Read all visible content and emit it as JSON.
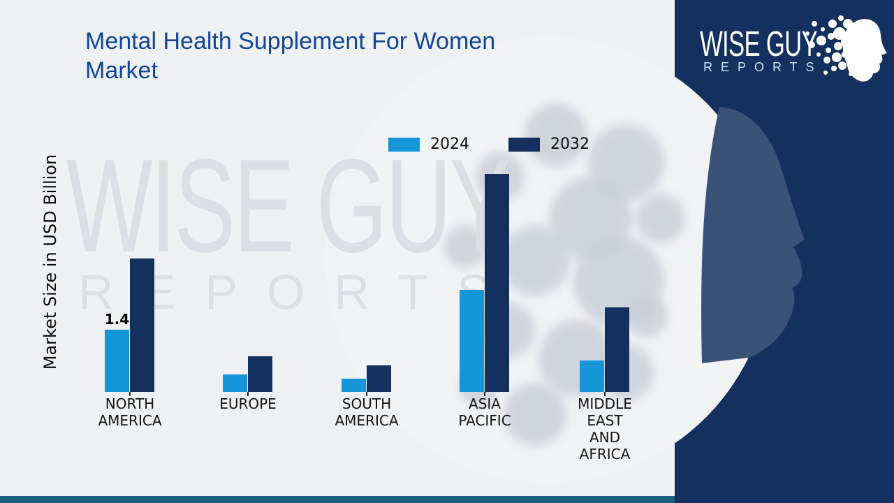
{
  "title_lines": [
    "Mental Health Supplement For Women",
    "Market"
  ],
  "watermark": {
    "line1": "WISE GUY",
    "line2": "REPORTS"
  },
  "logo": {
    "line1": "WISE GUY",
    "line2": "REPORTS"
  },
  "chart_data": {
    "type": "bar",
    "title": "Mental Health Supplement For Women Market",
    "xlabel": "",
    "ylabel": "Market Size in USD Billion",
    "categories": [
      "NORTH\nAMERICA",
      "EUROPE",
      "SOUTH\nAMERICA",
      "ASIA\nPACIFIC",
      "MIDDLE\nEAST\nAND\nAFRICA"
    ],
    "series": [
      {
        "name": "2024",
        "color": "#1496D8",
        "values": [
          1.4,
          0.4,
          0.3,
          2.3,
          0.7
        ]
      },
      {
        "name": "2032",
        "color": "#13305E",
        "values": [
          3.0,
          0.8,
          0.6,
          4.9,
          1.9
        ]
      }
    ],
    "shown_data_labels": [
      {
        "series": "2024",
        "category": "NORTH AMERICA",
        "text": "1.4"
      }
    ],
    "legend_position": "top-center",
    "grid": false,
    "ylim": [
      0,
      5
    ]
  },
  "colors": {
    "background": "#F0F1F2",
    "title": "#10459B",
    "series_2024": "#1496D8",
    "series_2032": "#13305E",
    "right_panel": "#13305E",
    "footer_bar": "#1B5E7D",
    "watermark": "#DCDFE4"
  }
}
